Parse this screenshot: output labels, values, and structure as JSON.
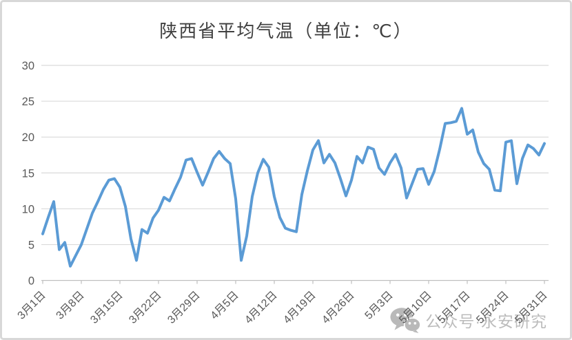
{
  "watermark": {
    "text": "公众号·永安研究",
    "icon": "wechat-icon",
    "color": "#b9b9b9"
  },
  "chart_data": {
    "type": "line",
    "title": "陕西省平均气温（单位：℃）",
    "xlabel": "",
    "ylabel": "",
    "ylim": [
      0,
      30
    ],
    "yticks": [
      0,
      5,
      10,
      15,
      20,
      25,
      30
    ],
    "grid": "horizontal-only",
    "legend": "none",
    "line_color": "#5B9BD5",
    "gridline_color": "#d9d9d9",
    "axis_color": "#bfbfbf",
    "tick_label_color": "#595959",
    "x_range_days": 92,
    "x_tick_days": [
      1,
      8,
      15,
      22,
      29,
      36,
      43,
      50,
      57,
      64,
      71,
      78,
      85,
      92
    ],
    "x_tick_labels": [
      "3月1日",
      "3月8日",
      "3月15日",
      "3月22日",
      "3月29日",
      "4月5日",
      "4月12日",
      "4月19日",
      "4月26日",
      "5月3日",
      "5月10日",
      "5月17日",
      "5月24日",
      "5月31日"
    ],
    "series": [
      {
        "name": "平均气温",
        "values": [
          6.5,
          8.8,
          11.0,
          4.3,
          5.3,
          2.0,
          3.5,
          5.0,
          7.2,
          9.4,
          11.0,
          12.7,
          14.0,
          14.2,
          13.0,
          10.3,
          5.8,
          2.8,
          7.1,
          6.6,
          8.7,
          9.8,
          11.6,
          11.1,
          12.8,
          14.4,
          16.8,
          17.0,
          15.1,
          13.3,
          15.1,
          17.0,
          18.0,
          17.0,
          16.3,
          11.4,
          2.8,
          6.2,
          11.7,
          15.0,
          16.9,
          15.8,
          11.7,
          8.8,
          7.3,
          7.0,
          6.8,
          12.0,
          15.3,
          18.2,
          19.5,
          16.4,
          17.6,
          16.4,
          14.2,
          11.8,
          14.0,
          17.3,
          16.4,
          18.6,
          18.3,
          15.7,
          14.8,
          16.4,
          17.6,
          15.7,
          11.5,
          13.5,
          15.5,
          15.6,
          13.4,
          15.2,
          18.3,
          21.9,
          22.0,
          22.2,
          24.0,
          20.4,
          21.0,
          17.9,
          16.3,
          15.5,
          12.6,
          12.5,
          19.3,
          19.5,
          13.5,
          17.0,
          18.9,
          18.4,
          17.5,
          19.1
        ]
      }
    ]
  }
}
